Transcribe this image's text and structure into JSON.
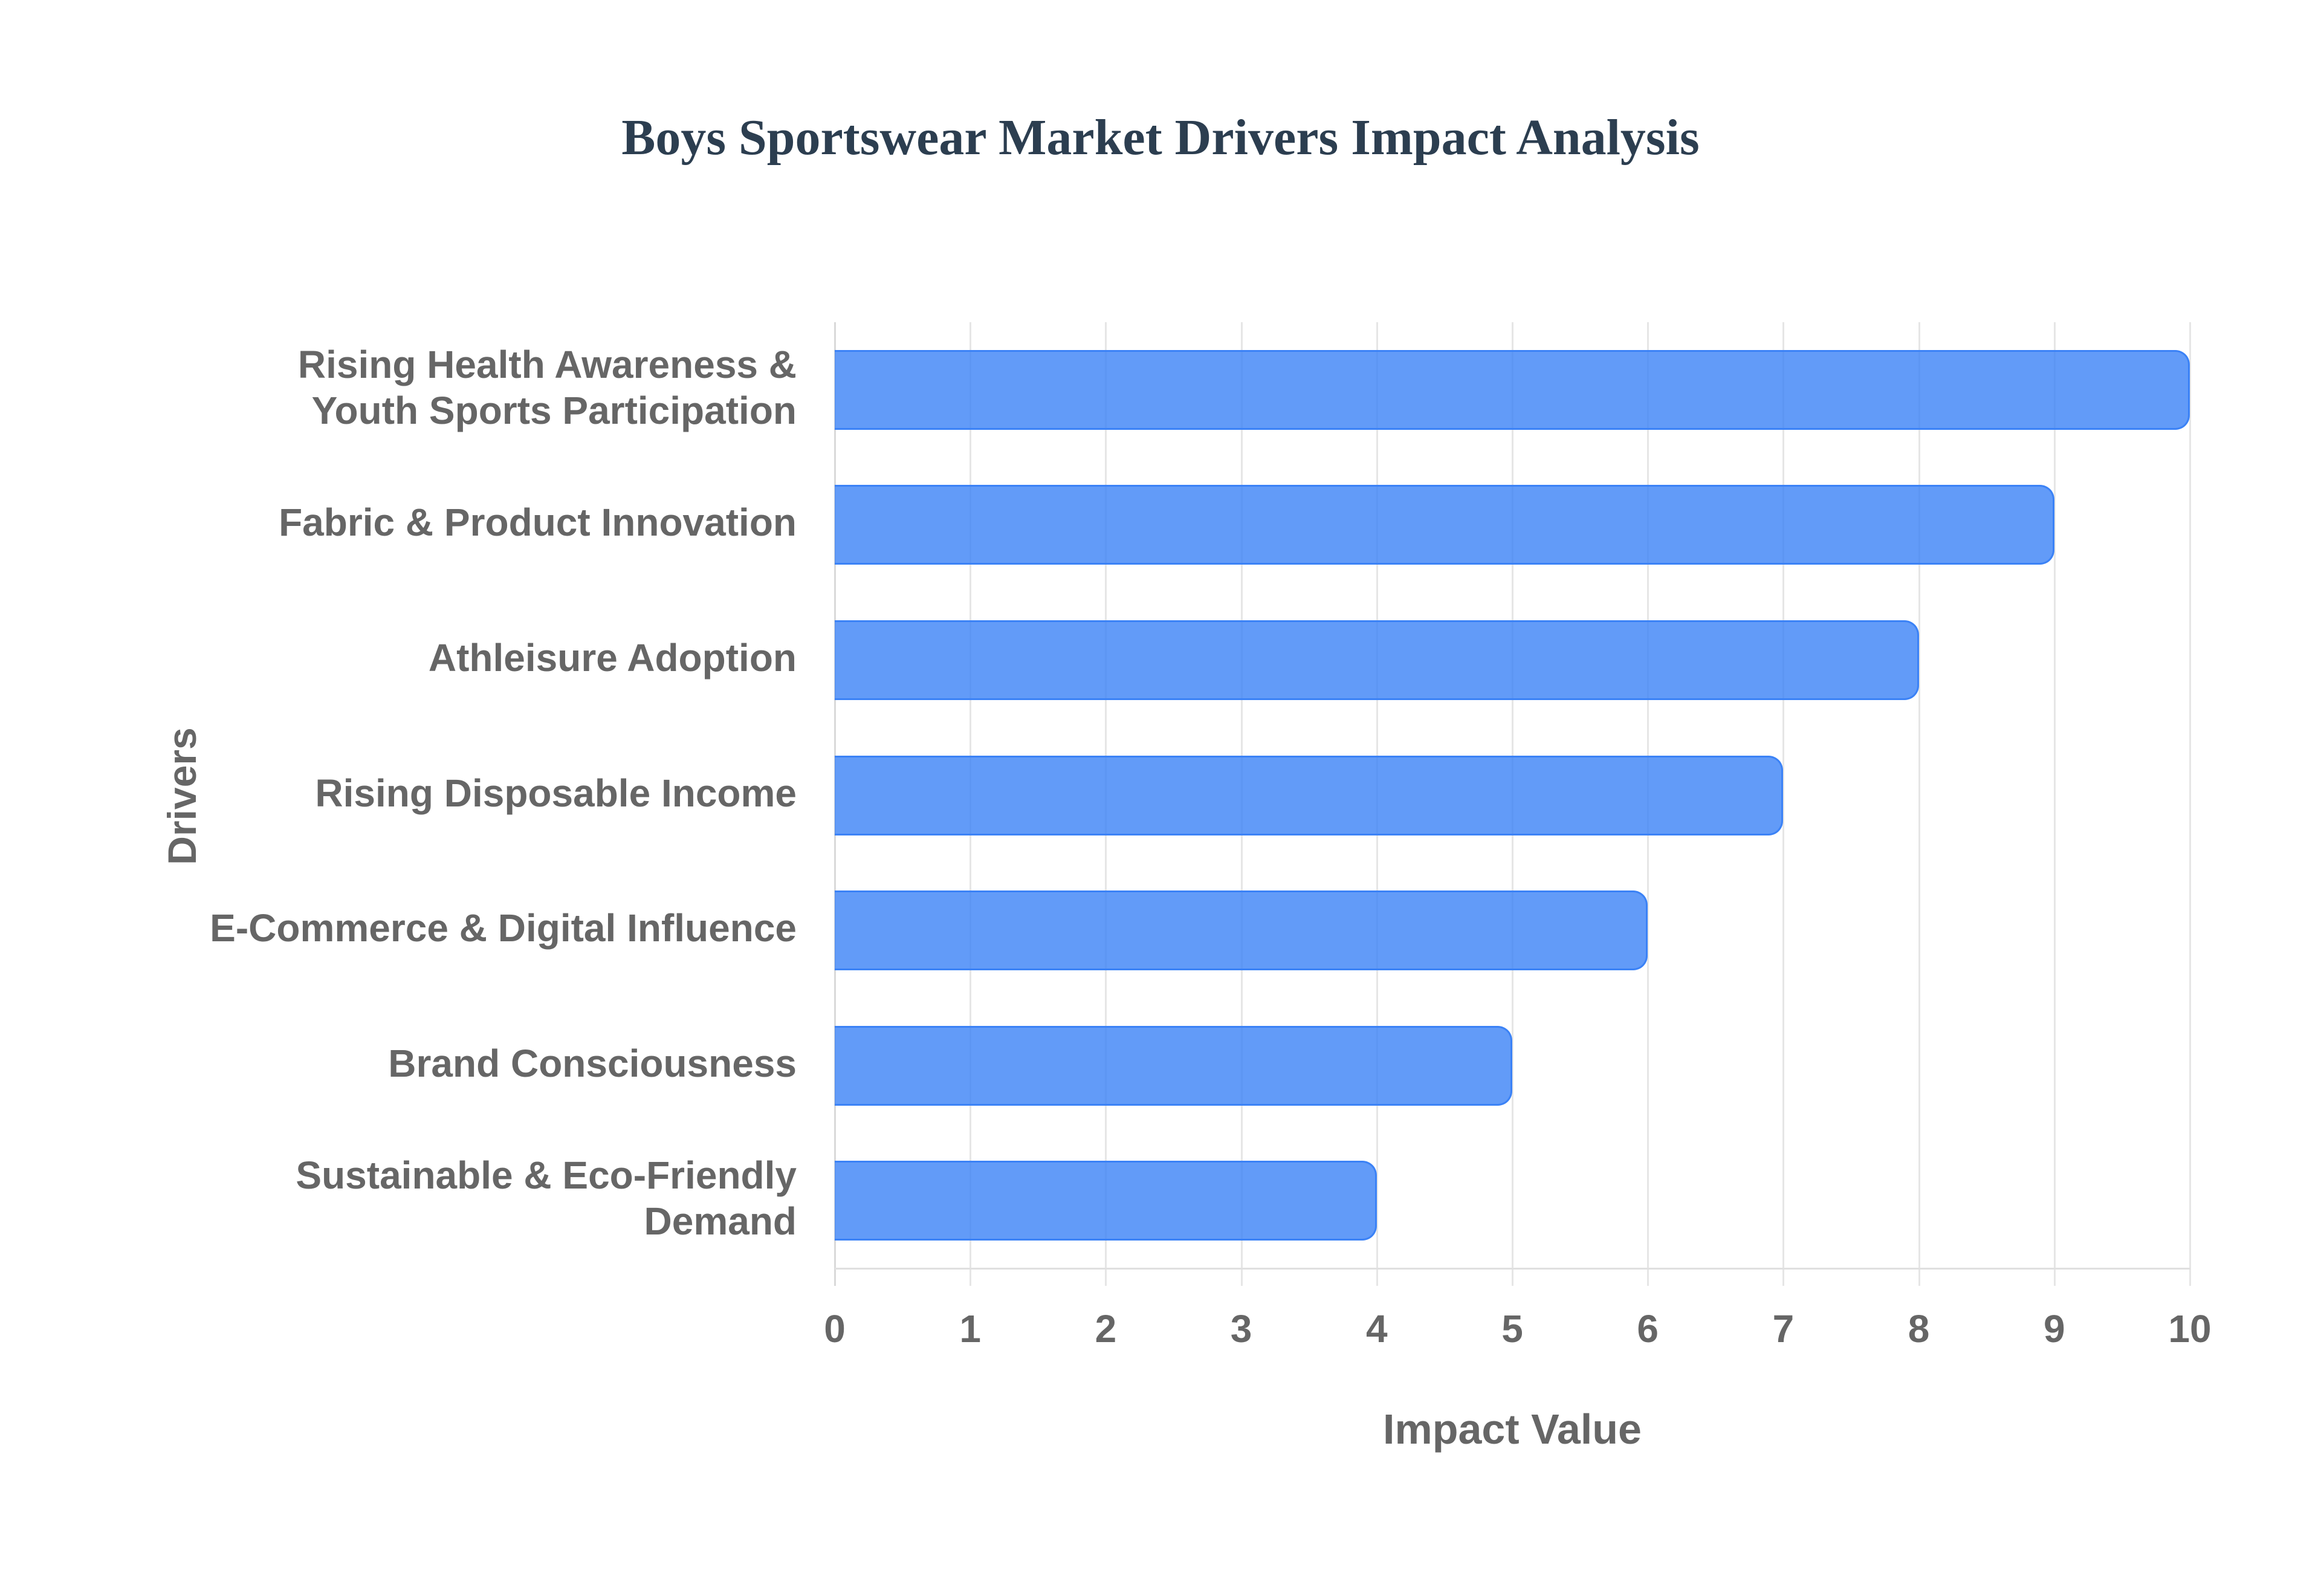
{
  "chart": {
    "title": "Boys Sportswear Market Drivers Impact Analysis",
    "xlabel": "Impact Value",
    "ylabel": "Drivers",
    "bar_color": "#3b82f6",
    "x_ticks": [
      "0",
      "1",
      "2",
      "3",
      "4",
      "5",
      "6",
      "7",
      "8",
      "9",
      "10"
    ]
  },
  "chart_data": {
    "type": "bar",
    "orientation": "horizontal",
    "title": "Boys Sportswear Market Drivers Impact Analysis",
    "xlabel": "Impact Value",
    "ylabel": "Drivers",
    "categories": [
      "Rising Health Awareness & Youth Sports Participation",
      "Fabric & Product Innovation",
      "Athleisure Adoption",
      "Rising Disposable Income",
      "E-Commerce & Digital Influence",
      "Brand Consciousness",
      "Sustainable & Eco-Friendly Demand"
    ],
    "display_labels": [
      "Rising Health Awareness &\nYouth Sports Participation",
      "Fabric & Product Innovation",
      "Athleisure Adoption",
      "Rising Disposable Income",
      "E-Commerce & Digital Influence",
      "Brand Consciousness",
      "Sustainable & Eco-Friendly\nDemand"
    ],
    "values": [
      10,
      9,
      8,
      7,
      6,
      5,
      4
    ],
    "xlim": [
      0,
      10
    ],
    "x_ticks": [
      0,
      1,
      2,
      3,
      4,
      5,
      6,
      7,
      8,
      9,
      10
    ],
    "grid": true,
    "legend": "none",
    "colors": [
      "#3b82f6"
    ]
  }
}
